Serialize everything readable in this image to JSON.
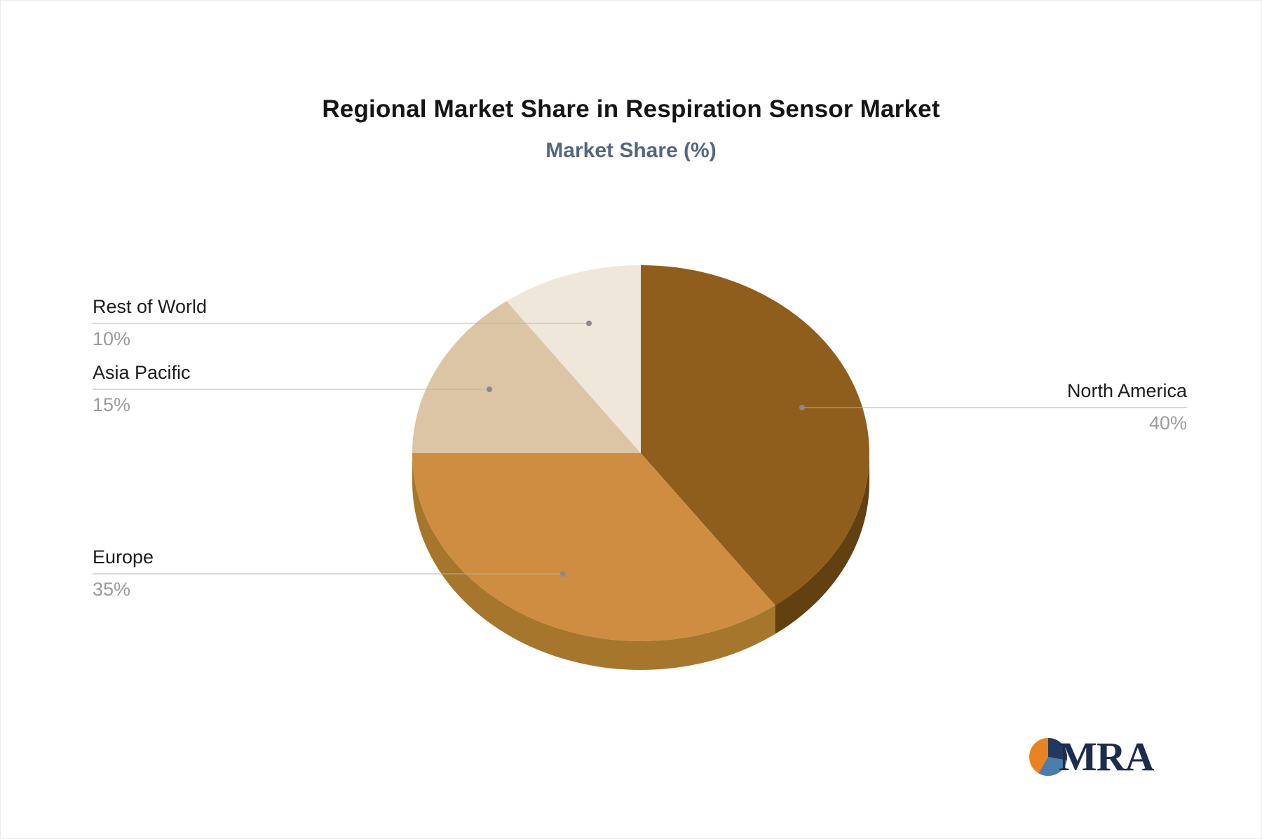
{
  "chart_data": {
    "type": "pie",
    "title": "Regional Market Share in Respiration Sensor Market",
    "subtitle": "Market Share (%)",
    "effect": "3d",
    "legend_position": "none",
    "label_style": "leader-lines",
    "unit": "%",
    "categories": [
      "North America",
      "Europe",
      "Asia Pacific",
      "Rest of World"
    ],
    "values": [
      40,
      35,
      15,
      10
    ],
    "colors": [
      "#8f5e1c",
      "#ce8d41",
      "#dbc5a4",
      "#f0e7db"
    ],
    "depth_colors": [
      "#63400f",
      "#a5762b",
      "#b5a186",
      "#d1c7b8"
    ],
    "labels": [
      {
        "name": "North America",
        "value": "40%"
      },
      {
        "name": "Europe",
        "value": "35%"
      },
      {
        "name": "Asia Pacific",
        "value": "15%"
      },
      {
        "name": "Rest of World",
        "value": "10%"
      }
    ],
    "title_color": "#151515",
    "subtitle_color": "#54687c",
    "label_name_color": "#1c1c1c",
    "label_value_color": "#9b9b9b",
    "line_color": "#b3b3b3",
    "dot_color": "#8a8a8a"
  },
  "logo": {
    "text": "MRA",
    "text_color": "#1c2c4e",
    "icon_colors": [
      "#e8831f",
      "#21395e",
      "#4a7dad"
    ]
  }
}
